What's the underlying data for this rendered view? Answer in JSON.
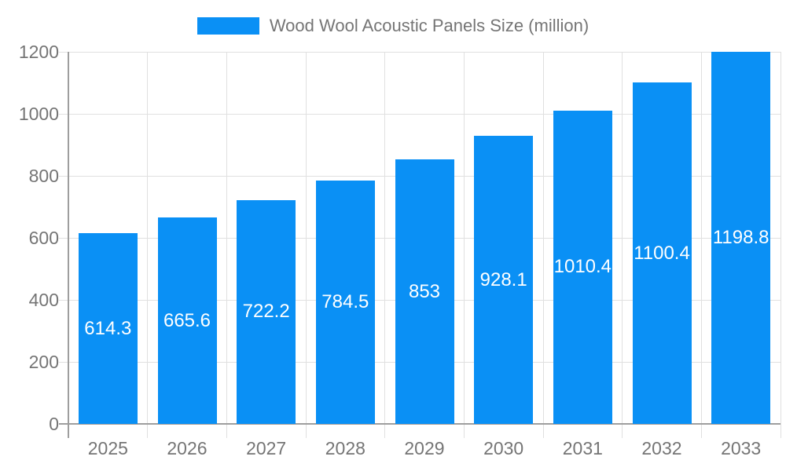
{
  "legend": {
    "label": "Wood Wool Acoustic Panels Size (million)"
  },
  "colors": {
    "bar": "#0a90f5",
    "grid": "#e0e0e0",
    "axis": "#9e9e9e",
    "tick_label": "#757575",
    "value_label": "#ffffff",
    "background": "#ffffff"
  },
  "chart_data": {
    "type": "bar",
    "title": "Wood Wool Acoustic Panels Size (million)",
    "categories": [
      "2025",
      "2026",
      "2027",
      "2028",
      "2029",
      "2030",
      "2031",
      "2032",
      "2033"
    ],
    "values": [
      614.3,
      665.6,
      722.2,
      784.5,
      853,
      928.1,
      1010.4,
      1100.4,
      1198.8
    ],
    "value_labels": [
      "614.3",
      "665.6",
      "722.2",
      "784.5",
      "853",
      "928.1",
      "1010.4",
      "1100.4",
      "1198.8"
    ],
    "xlabel": "",
    "ylabel": "",
    "ylim": [
      0,
      1200
    ],
    "yticks": [
      0,
      200,
      400,
      600,
      800,
      1000,
      1200
    ],
    "grid": true,
    "legend_position": "top",
    "bar_color": "#0a90f5",
    "value_label_position": "center-inside"
  }
}
